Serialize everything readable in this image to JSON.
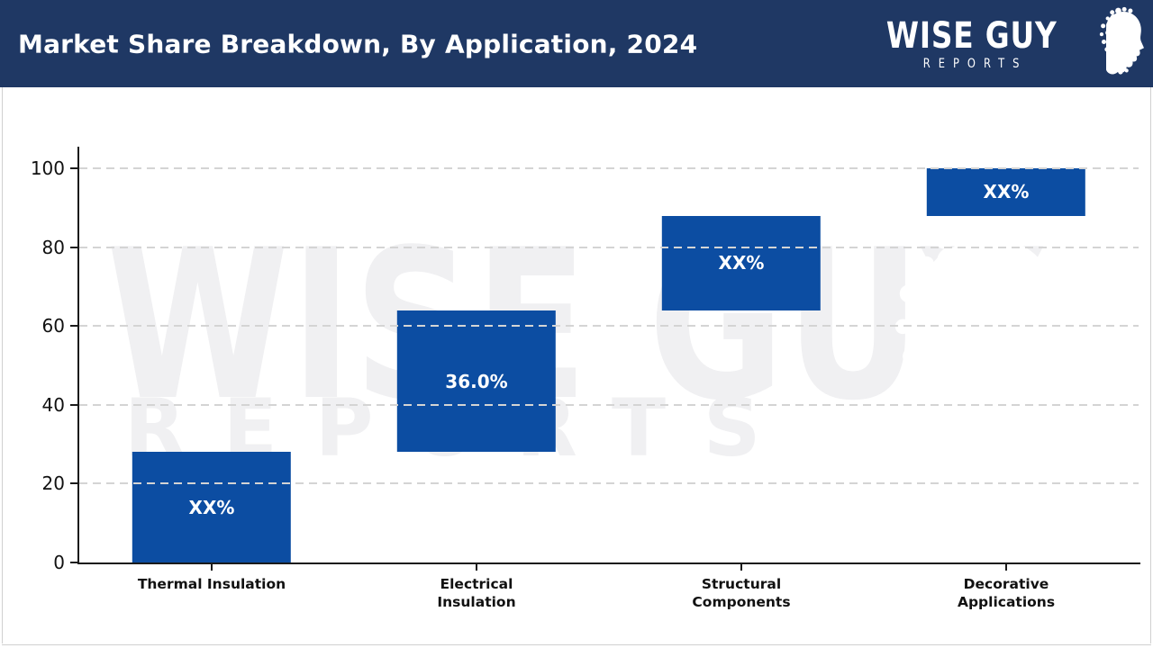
{
  "header": {
    "title": "Market Share Breakdown, By Application, 2024",
    "logo": {
      "wordmark": "WISE GUY",
      "subtext": "REPORTS"
    }
  },
  "watermark": {
    "wordmark": "WISE GUY",
    "subtext": "REPORTS"
  },
  "chart_data": {
    "type": "bar",
    "variant": "floating-waterfall-segments",
    "title": "Market Share Breakdown, By Application, 2024",
    "categories": [
      "Thermal Insulation",
      "Electrical Insulation",
      "Structural Components",
      "Decorative Applications"
    ],
    "category_label_lines": [
      [
        "Thermal Insulation"
      ],
      [
        "Electrical",
        "Insulation"
      ],
      [
        "Structural",
        "Components"
      ],
      [
        "Decorative",
        "Applications"
      ]
    ],
    "segments": [
      {
        "category": "Thermal Insulation",
        "start": 0,
        "end": 28,
        "label": "XX%"
      },
      {
        "category": "Electrical Insulation",
        "start": 28,
        "end": 64,
        "label": "36.0%"
      },
      {
        "category": "Structural Components",
        "start": 64,
        "end": 88,
        "label": "XX%"
      },
      {
        "category": "Decorative Applications",
        "start": 88,
        "end": 100,
        "label": "XX%"
      }
    ],
    "yticks": [
      0,
      20,
      40,
      60,
      80,
      100
    ],
    "ylim": [
      0,
      100
    ],
    "xlabel": "",
    "ylabel": "",
    "grid": {
      "horizontal": true,
      "style": "dashed",
      "over_bars": true
    },
    "legend": "none",
    "bar_color": "#0c4da2",
    "bar_label_color": "#ffffff"
  },
  "colors": {
    "header_bg": "#1f3864",
    "bar": "#0c4da2",
    "watermark": "#f0f0f2",
    "gridline": "#d4d4d4",
    "axis": "#1a1a1a",
    "frame_border": "#d0d0d0",
    "text": "#111111",
    "title_text": "#ffffff"
  }
}
